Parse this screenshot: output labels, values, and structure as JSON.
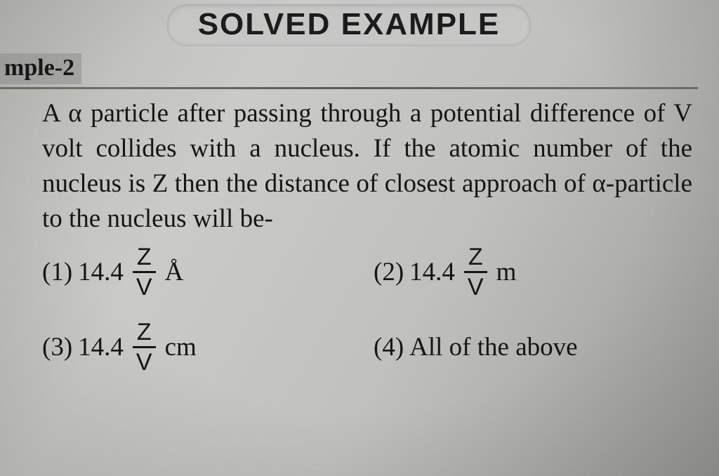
{
  "heading": "SOLVED EXAMPLE",
  "example_label": "mple-2",
  "question_lines": [
    "A α particle after passing through a potential difference",
    "of V volt collides with a nucleus. If the atomic number",
    "of the nucleus is Z then the distance of closest approach",
    "of α-particle to the nucleus will be-"
  ],
  "options": {
    "o1": {
      "num": "(1)",
      "coef": "14.4",
      "frac_num": "Z",
      "frac_den": "V",
      "unit": "Å"
    },
    "o2": {
      "num": "(2)",
      "coef": "14.4",
      "frac_num": "Z",
      "frac_den": "V",
      "unit": "m"
    },
    "o3": {
      "num": "(3)",
      "coef": "14.4",
      "frac_num": "Z",
      "frac_den": "V",
      "unit": "cm"
    },
    "o4": {
      "num": "(4)",
      "text": "All of the above"
    }
  },
  "style": {
    "heading_fontsize": 44,
    "body_fontsize": 37,
    "heading_color": "#1c1c1c",
    "text_color": "#151515",
    "bg_gradient": [
      "#b8b8b4",
      "#cacac6",
      "#c0c0bc",
      "#9a9a96"
    ],
    "pill_bg": "#c6c6c4",
    "label_bg": "#a6a6a4",
    "rule_color": "#5a5a58"
  }
}
